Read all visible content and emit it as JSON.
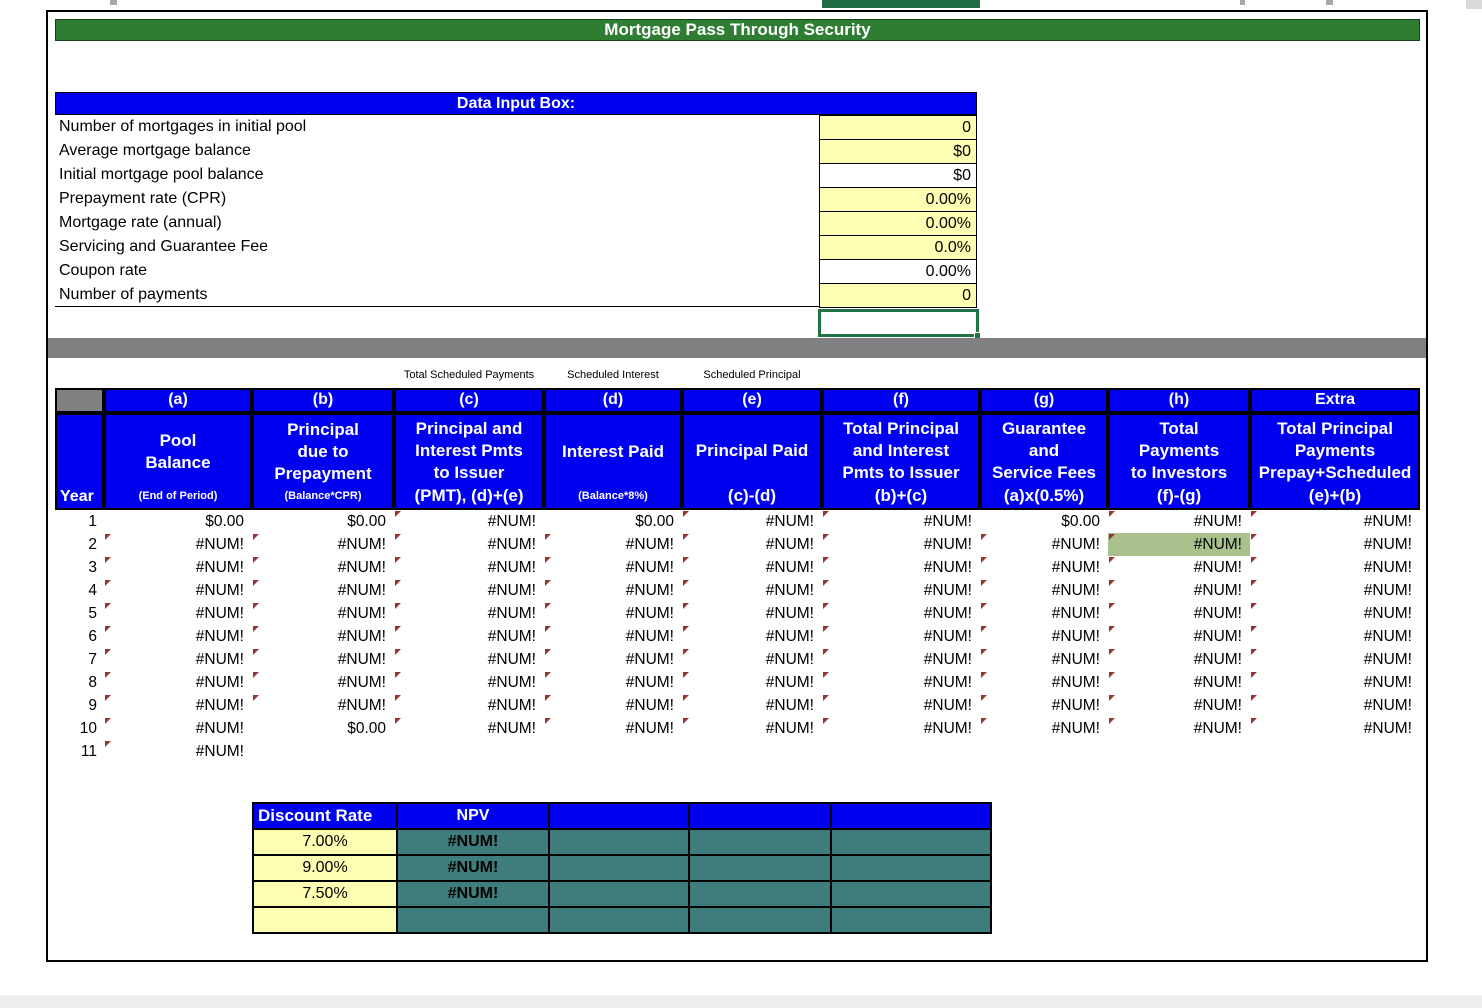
{
  "title": "Mortgage Pass Through Security",
  "data_input": {
    "header": "Data Input Box:",
    "rows": [
      {
        "label": "Number of mortgages in initial pool",
        "value": "0",
        "fill": "yellow"
      },
      {
        "label": "Average mortgage balance",
        "value": "$0",
        "fill": "yellow"
      },
      {
        "label": "Initial mortgage pool balance",
        "value": "$0",
        "fill": "white"
      },
      {
        "label": "Prepayment rate (CPR)",
        "value": "0.00%",
        "fill": "yellow"
      },
      {
        "label": "Mortgage rate (annual)",
        "value": "0.00%",
        "fill": "yellow"
      },
      {
        "label": "Servicing and Guarantee Fee",
        "value": "0.0%",
        "fill": "yellow"
      },
      {
        "label": "Coupon rate",
        "value": "0.00%",
        "fill": "white"
      },
      {
        "label": "Number of payments",
        "value": "0",
        "fill": "yellow"
      }
    ]
  },
  "annotations": {
    "above_c": "Total Scheduled Payments",
    "above_d": "Scheduled Interest",
    "above_e": "Scheduled Principal"
  },
  "table": {
    "year_label": "Year",
    "error_value": "#NUM!",
    "columns": [
      {
        "key": "a",
        "letter": "(a)",
        "lines": [
          "Pool",
          "Balance"
        ],
        "formula": "(End of Period)",
        "formula_small": true
      },
      {
        "key": "b",
        "letter": "(b)",
        "lines": [
          "Principal",
          "due to",
          "Prepayment"
        ],
        "formula": "(Balance*CPR)",
        "formula_small": true
      },
      {
        "key": "c",
        "letter": "(c)",
        "lines": [
          "Principal and",
          "Interest Pmts",
          "to Issuer"
        ],
        "formula": "(PMT), (d)+(e)",
        "formula_small": false
      },
      {
        "key": "d",
        "letter": "(d)",
        "lines": [
          "Interest Paid"
        ],
        "formula": "(Balance*8%)",
        "formula_small": true
      },
      {
        "key": "e",
        "letter": "(e)",
        "lines": [
          "Principal Paid"
        ],
        "formula": "(c)-(d)",
        "formula_small": false
      },
      {
        "key": "f",
        "letter": "(f)",
        "lines": [
          "Total Principal",
          "and Interest",
          "Pmts to Issuer"
        ],
        "formula": "(b)+(c)",
        "formula_small": false
      },
      {
        "key": "g",
        "letter": "(g)",
        "lines": [
          "Guarantee",
          "and",
          "Service Fees"
        ],
        "formula": "(a)x(0.5%)",
        "formula_small": false
      },
      {
        "key": "h",
        "letter": "(h)",
        "lines": [
          "Total",
          "Payments",
          "to Investors"
        ],
        "formula": "(f)-(g)",
        "formula_small": false
      },
      {
        "key": "extra",
        "letter": "Extra",
        "lines": [
          "Total Principal",
          "Payments",
          "Prepay+Scheduled"
        ],
        "formula": "(e)+(b)",
        "formula_small": false
      }
    ],
    "rows": [
      {
        "year": "1",
        "cells": [
          "$0.00",
          "$0.00",
          "#NUM!",
          "$0.00",
          "#NUM!",
          "#NUM!",
          "$0.00",
          "#NUM!",
          "#NUM!"
        ]
      },
      {
        "year": "2",
        "cells": [
          "#NUM!",
          "#NUM!",
          "#NUM!",
          "#NUM!",
          "#NUM!",
          "#NUM!",
          "#NUM!",
          "#NUM!",
          "#NUM!"
        ],
        "highlight": 7
      },
      {
        "year": "3",
        "cells": [
          "#NUM!",
          "#NUM!",
          "#NUM!",
          "#NUM!",
          "#NUM!",
          "#NUM!",
          "#NUM!",
          "#NUM!",
          "#NUM!"
        ]
      },
      {
        "year": "4",
        "cells": [
          "#NUM!",
          "#NUM!",
          "#NUM!",
          "#NUM!",
          "#NUM!",
          "#NUM!",
          "#NUM!",
          "#NUM!",
          "#NUM!"
        ]
      },
      {
        "year": "5",
        "cells": [
          "#NUM!",
          "#NUM!",
          "#NUM!",
          "#NUM!",
          "#NUM!",
          "#NUM!",
          "#NUM!",
          "#NUM!",
          "#NUM!"
        ]
      },
      {
        "year": "6",
        "cells": [
          "#NUM!",
          "#NUM!",
          "#NUM!",
          "#NUM!",
          "#NUM!",
          "#NUM!",
          "#NUM!",
          "#NUM!",
          "#NUM!"
        ]
      },
      {
        "year": "7",
        "cells": [
          "#NUM!",
          "#NUM!",
          "#NUM!",
          "#NUM!",
          "#NUM!",
          "#NUM!",
          "#NUM!",
          "#NUM!",
          "#NUM!"
        ]
      },
      {
        "year": "8",
        "cells": [
          "#NUM!",
          "#NUM!",
          "#NUM!",
          "#NUM!",
          "#NUM!",
          "#NUM!",
          "#NUM!",
          "#NUM!",
          "#NUM!"
        ]
      },
      {
        "year": "9",
        "cells": [
          "#NUM!",
          "#NUM!",
          "#NUM!",
          "#NUM!",
          "#NUM!",
          "#NUM!",
          "#NUM!",
          "#NUM!",
          "#NUM!"
        ]
      },
      {
        "year": "10",
        "cells": [
          "#NUM!",
          "$0.00",
          "#NUM!",
          "#NUM!",
          "#NUM!",
          "#NUM!",
          "#NUM!",
          "#NUM!",
          "#NUM!"
        ]
      },
      {
        "year": "11",
        "cells": [
          "#NUM!",
          "",
          "",
          "",
          "",
          "",
          "",
          "",
          ""
        ]
      }
    ]
  },
  "npv_table": {
    "headers": [
      "Discount Rate",
      "NPV",
      "",
      "",
      ""
    ],
    "rows": [
      {
        "rate": "7.00%",
        "npv": "#NUM!"
      },
      {
        "rate": "9.00%",
        "npv": "#NUM!"
      },
      {
        "rate": "7.50%",
        "npv": "#NUM!"
      },
      {
        "rate": "",
        "npv": ""
      }
    ]
  },
  "colors": {
    "title_green": "#2e7d32",
    "top_cell_green": "#1f6b45",
    "header_blue": "#0000f0",
    "input_yellow": "#ffffb3",
    "teal": "#3f7d7c",
    "highlight_green": "#a9c18c",
    "separator_gray": "#808080",
    "selection_green": "#217346",
    "error_marker": "#943634"
  }
}
